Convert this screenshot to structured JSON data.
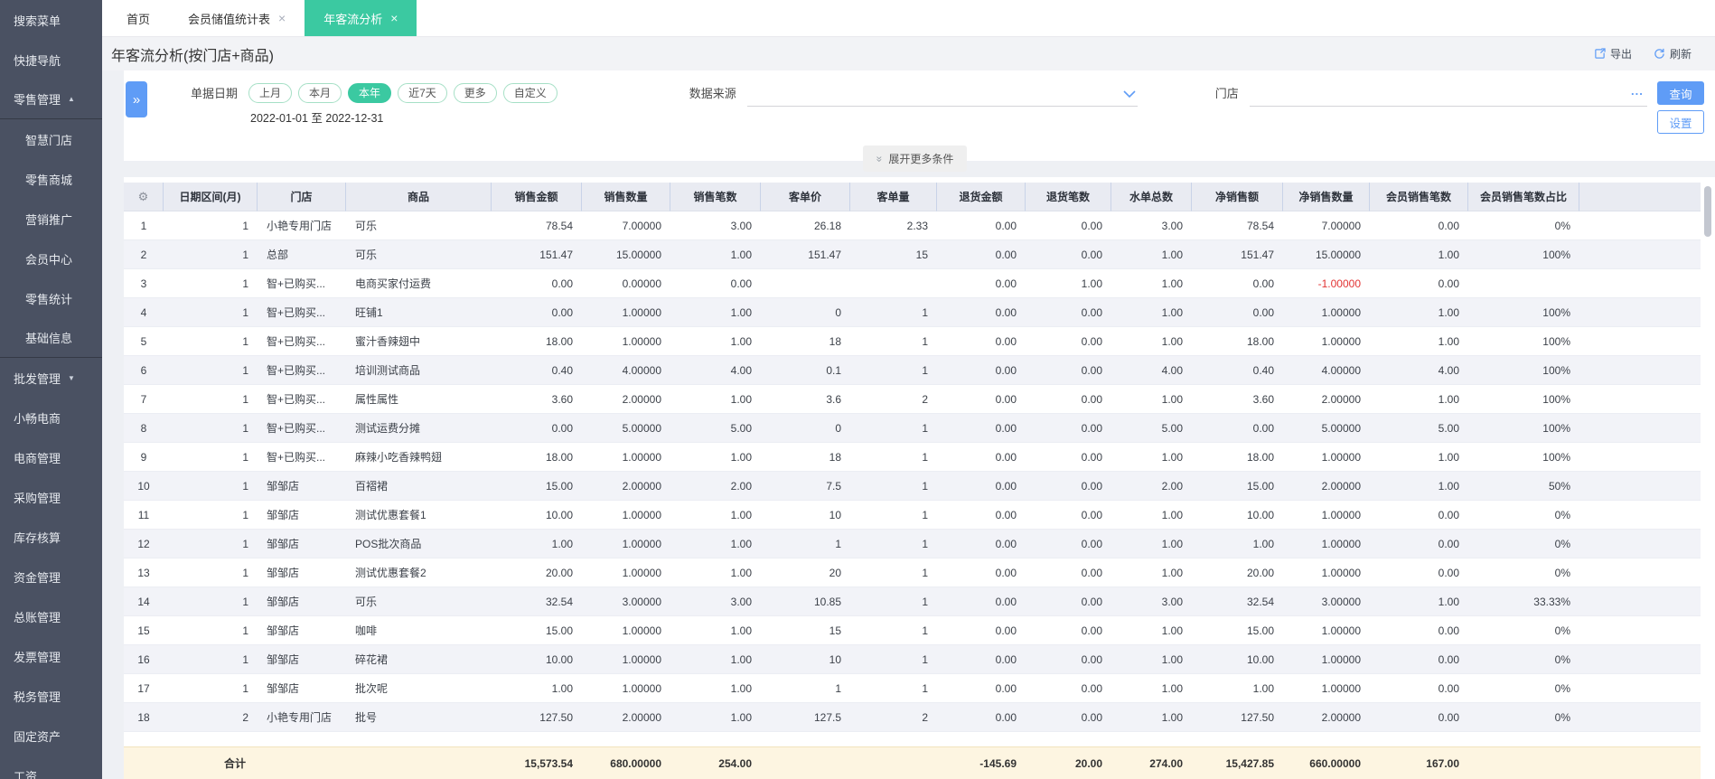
{
  "colors": {
    "accent_green": "#3bc9a1",
    "accent_blue": "#5f9cf6",
    "negative_red": "#e23434",
    "sidebar_bg": "#4a5162",
    "footer_bg": "#fdf5e1",
    "header_row_bg": "#e9ebf2"
  },
  "sidebar": {
    "items": [
      {
        "label": "搜索菜单"
      },
      {
        "label": "快捷导航"
      },
      {
        "label": "零售管理",
        "arrow": "up",
        "divider_after": true
      },
      {
        "label": "智慧门店",
        "indent": true
      },
      {
        "label": "零售商城",
        "indent": true
      },
      {
        "label": "营销推广",
        "indent": true
      },
      {
        "label": "会员中心",
        "indent": true
      },
      {
        "label": "零售统计",
        "indent": true
      },
      {
        "label": "基础信息",
        "indent": true,
        "divider_after": true
      },
      {
        "label": "批发管理",
        "arrow": "down"
      },
      {
        "label": "小畅电商"
      },
      {
        "label": "电商管理"
      },
      {
        "label": "采购管理"
      },
      {
        "label": "库存核算"
      },
      {
        "label": "资金管理"
      },
      {
        "label": "总账管理"
      },
      {
        "label": "发票管理"
      },
      {
        "label": "税务管理"
      },
      {
        "label": "固定资产"
      },
      {
        "label": "工资"
      }
    ]
  },
  "tabs": [
    {
      "label": "首页",
      "closable": false,
      "active": false
    },
    {
      "label": "会员储值统计表",
      "closable": true,
      "active": false
    },
    {
      "label": "年客流分析",
      "closable": true,
      "active": true
    }
  ],
  "page": {
    "title": "年客流分析(按门店+商品)",
    "export_label": "导出",
    "refresh_label": "刷新"
  },
  "filters": {
    "date_label": "单据日期",
    "date_pills": [
      "上月",
      "本月",
      "本年",
      "近7天",
      "更多",
      "自定义"
    ],
    "date_pill_selected": "本年",
    "date_range": "2022-01-01 至 2022-12-31",
    "source_label": "数据来源",
    "source_value": "",
    "store_label": "门店",
    "store_value": "",
    "ellipsis_label": "...",
    "query_label": "查询",
    "settings_label": "设置",
    "more_label": "展开更多条件"
  },
  "table": {
    "settings_icon": "⚙",
    "columns": [
      "日期区间(月)",
      "门店",
      "商品",
      "销售金额",
      "销售数量",
      "销售笔数",
      "客单价",
      "客单量",
      "退货金额",
      "退货笔数",
      "水单总数",
      "净销售额",
      "净销售数量",
      "会员销售笔数",
      "会员销售笔数占比"
    ],
    "rows": [
      [
        "1",
        "1",
        "小艳专用门店",
        "可乐",
        "78.54",
        "7.00000",
        "3.00",
        "26.18",
        "2.33",
        "0.00",
        "0.00",
        "3.00",
        "78.54",
        "7.00000",
        "0.00",
        "0%"
      ],
      [
        "2",
        "1",
        "总部",
        "可乐",
        "151.47",
        "15.00000",
        "1.00",
        "151.47",
        "15",
        "0.00",
        "0.00",
        "1.00",
        "151.47",
        "15.00000",
        "1.00",
        "100%"
      ],
      [
        "3",
        "1",
        "智+已购买...",
        "电商买家付运费",
        "0.00",
        "0.00000",
        "0.00",
        "",
        "",
        "0.00",
        "1.00",
        "1.00",
        "0.00",
        "-1.00000",
        "0.00",
        ""
      ],
      [
        "4",
        "1",
        "智+已购买...",
        "旺铺1",
        "0.00",
        "1.00000",
        "1.00",
        "0",
        "1",
        "0.00",
        "0.00",
        "1.00",
        "0.00",
        "1.00000",
        "1.00",
        "100%"
      ],
      [
        "5",
        "1",
        "智+已购买...",
        "蜜汁香辣翅中",
        "18.00",
        "1.00000",
        "1.00",
        "18",
        "1",
        "0.00",
        "0.00",
        "1.00",
        "18.00",
        "1.00000",
        "1.00",
        "100%"
      ],
      [
        "6",
        "1",
        "智+已购买...",
        "培训测试商品",
        "0.40",
        "4.00000",
        "4.00",
        "0.1",
        "1",
        "0.00",
        "0.00",
        "4.00",
        "0.40",
        "4.00000",
        "4.00",
        "100%"
      ],
      [
        "7",
        "1",
        "智+已购买...",
        "属性属性",
        "3.60",
        "2.00000",
        "1.00",
        "3.6",
        "2",
        "0.00",
        "0.00",
        "1.00",
        "3.60",
        "2.00000",
        "1.00",
        "100%"
      ],
      [
        "8",
        "1",
        "智+已购买...",
        "测试运费分摊",
        "0.00",
        "5.00000",
        "5.00",
        "0",
        "1",
        "0.00",
        "0.00",
        "5.00",
        "0.00",
        "5.00000",
        "5.00",
        "100%"
      ],
      [
        "9",
        "1",
        "智+已购买...",
        "麻辣小吃香辣鸭翅",
        "18.00",
        "1.00000",
        "1.00",
        "18",
        "1",
        "0.00",
        "0.00",
        "1.00",
        "18.00",
        "1.00000",
        "1.00",
        "100%"
      ],
      [
        "10",
        "1",
        "邹邹店",
        "百褶裙",
        "15.00",
        "2.00000",
        "2.00",
        "7.5",
        "1",
        "0.00",
        "0.00",
        "2.00",
        "15.00",
        "2.00000",
        "1.00",
        "50%"
      ],
      [
        "11",
        "1",
        "邹邹店",
        "测试优惠套餐1",
        "10.00",
        "1.00000",
        "1.00",
        "10",
        "1",
        "0.00",
        "0.00",
        "1.00",
        "10.00",
        "1.00000",
        "0.00",
        "0%"
      ],
      [
        "12",
        "1",
        "邹邹店",
        "POS批次商品",
        "1.00",
        "1.00000",
        "1.00",
        "1",
        "1",
        "0.00",
        "0.00",
        "1.00",
        "1.00",
        "1.00000",
        "0.00",
        "0%"
      ],
      [
        "13",
        "1",
        "邹邹店",
        "测试优惠套餐2",
        "20.00",
        "1.00000",
        "1.00",
        "20",
        "1",
        "0.00",
        "0.00",
        "1.00",
        "20.00",
        "1.00000",
        "0.00",
        "0%"
      ],
      [
        "14",
        "1",
        "邹邹店",
        "可乐",
        "32.54",
        "3.00000",
        "3.00",
        "10.85",
        "1",
        "0.00",
        "0.00",
        "3.00",
        "32.54",
        "3.00000",
        "1.00",
        "33.33%"
      ],
      [
        "15",
        "1",
        "邹邹店",
        "咖啡",
        "15.00",
        "1.00000",
        "1.00",
        "15",
        "1",
        "0.00",
        "0.00",
        "1.00",
        "15.00",
        "1.00000",
        "0.00",
        "0%"
      ],
      [
        "16",
        "1",
        "邹邹店",
        "碎花裙",
        "10.00",
        "1.00000",
        "1.00",
        "10",
        "1",
        "0.00",
        "0.00",
        "1.00",
        "10.00",
        "1.00000",
        "0.00",
        "0%"
      ],
      [
        "17",
        "1",
        "邹邹店",
        "批次呢",
        "1.00",
        "1.00000",
        "1.00",
        "1",
        "1",
        "0.00",
        "0.00",
        "1.00",
        "1.00",
        "1.00000",
        "0.00",
        "0%"
      ],
      [
        "18",
        "2",
        "小艳专用门店",
        "批号",
        "127.50",
        "2.00000",
        "1.00",
        "127.5",
        "2",
        "0.00",
        "0.00",
        "1.00",
        "127.50",
        "2.00000",
        "0.00",
        "0%"
      ]
    ],
    "footer": {
      "label": "合计",
      "cells": [
        "",
        "15,573.54",
        "680.00000",
        "254.00",
        "",
        "",
        "-145.69",
        "20.00",
        "274.00",
        "15,427.85",
        "660.00000",
        "167.00",
        ""
      ]
    }
  }
}
